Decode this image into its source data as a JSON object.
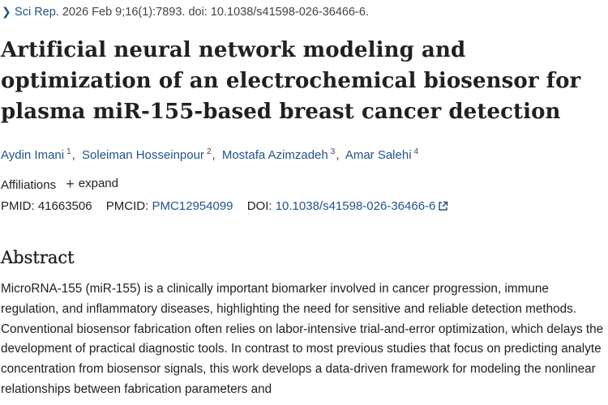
{
  "citation": {
    "journal": "Sci Rep.",
    "details": " 2026 Feb 9;16(1):7893. doi: 10.1038/s41598-026-36466-6."
  },
  "title": "Artificial neural network modeling and optimization of an electrochemical biosensor for plasma miR-155-based breast cancer detection",
  "authors": [
    {
      "name": "Aydin Imani",
      "aff": "1"
    },
    {
      "name": "Soleiman Hosseinpour",
      "aff": "2"
    },
    {
      "name": "Mostafa Azimzadeh",
      "aff": "3"
    },
    {
      "name": "Amar Salehi",
      "aff": "4"
    }
  ],
  "author_separator": ",",
  "affiliations": {
    "label": "Affiliations",
    "expand_label": "expand"
  },
  "identifiers": {
    "pmid_label": "PMID:",
    "pmid": "41663506",
    "pmcid_label": "PMCID:",
    "pmcid": "PMC12954099",
    "doi_label": "DOI:",
    "doi": "10.1038/s41598-026-36466-6"
  },
  "abstract": {
    "heading": "Abstract",
    "text": "MicroRNA-155 (miR-155) is a clinically important biomarker involved in cancer progression, immune regulation, and inflammatory diseases, highlighting the need for sensitive and reliable detection methods. Conventional biosensor fabrication often relies on labor-intensive trial-and-error optimization, which delays the development of practical diagnostic tools. In contrast to most previous studies that focus on predicting analyte concentration from biosensor signals, this work develops a data-driven framework for modeling the nonlinear relationships between fabrication parameters and"
  },
  "colors": {
    "link": "#20558a",
    "text": "#212121"
  }
}
